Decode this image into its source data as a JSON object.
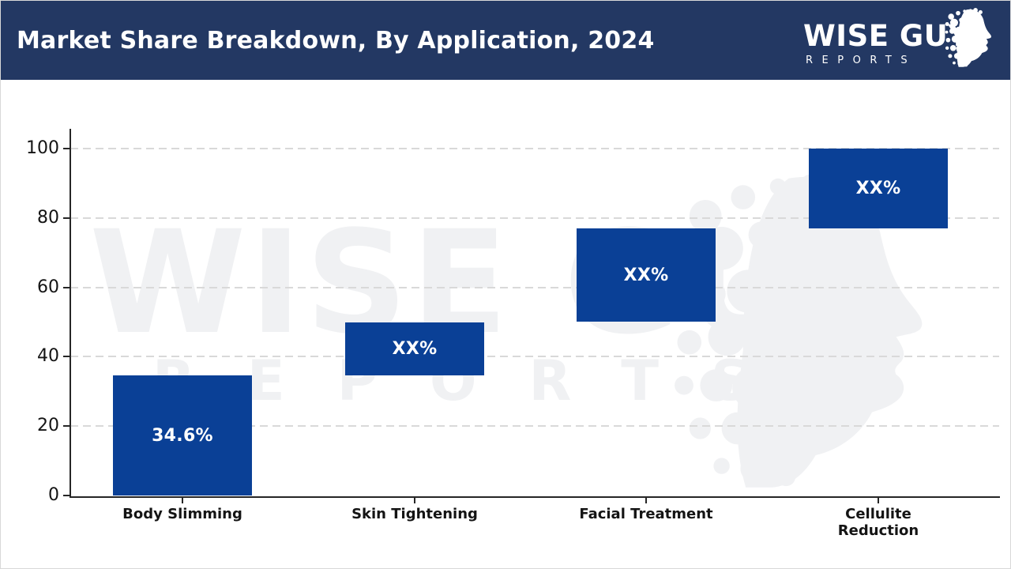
{
  "header": {
    "title": "Market Share Breakdown, By Application, 2024"
  },
  "logo": {
    "wordmark": "WISE GUY",
    "subtext": "REPORTS"
  },
  "watermark": {
    "wordmark": "WISE GU",
    "subtext": "REPORTS"
  },
  "colors": {
    "header_bg": "#233863",
    "bar": "#0a4096",
    "bar_label": "#ffffff",
    "axis": "#262626",
    "grid": "#d9d9d9",
    "watermark": "#f0f1f3"
  },
  "chart_data": {
    "type": "bar",
    "variant": "waterfall",
    "title": "Market Share Breakdown, By Application, 2024",
    "categories": [
      "Body Slimming",
      "Skin Tightening",
      "Facial Treatment",
      "Cellulite Reduction"
    ],
    "categories_display": [
      [
        "Body Slimming"
      ],
      [
        "Skin Tightening"
      ],
      [
        "Facial Treatment"
      ],
      [
        "Cellulite",
        "Reduction"
      ]
    ],
    "series": [
      {
        "category": "Body Slimming",
        "start": 0,
        "end": 34.6,
        "label": "34.6%"
      },
      {
        "category": "Skin Tightening",
        "start": 34.6,
        "end": 50,
        "label": "XX%"
      },
      {
        "category": "Facial Treatment",
        "start": 50,
        "end": 77,
        "label": "XX%"
      },
      {
        "category": "Cellulite Reduction",
        "start": 77,
        "end": 100,
        "label": "XX%"
      }
    ],
    "y_ticks": [
      0,
      20,
      40,
      60,
      80,
      100
    ],
    "ylim": [
      0,
      105
    ],
    "xlabel": "",
    "ylabel": "",
    "grid": "horizontal-dashed",
    "legend": "none",
    "bar_color": "#0a4096",
    "note": "values for Skin Tightening, Facial Treatment and Cellulite Reduction are masked as XX%; starts/ends estimated from gridlines"
  }
}
